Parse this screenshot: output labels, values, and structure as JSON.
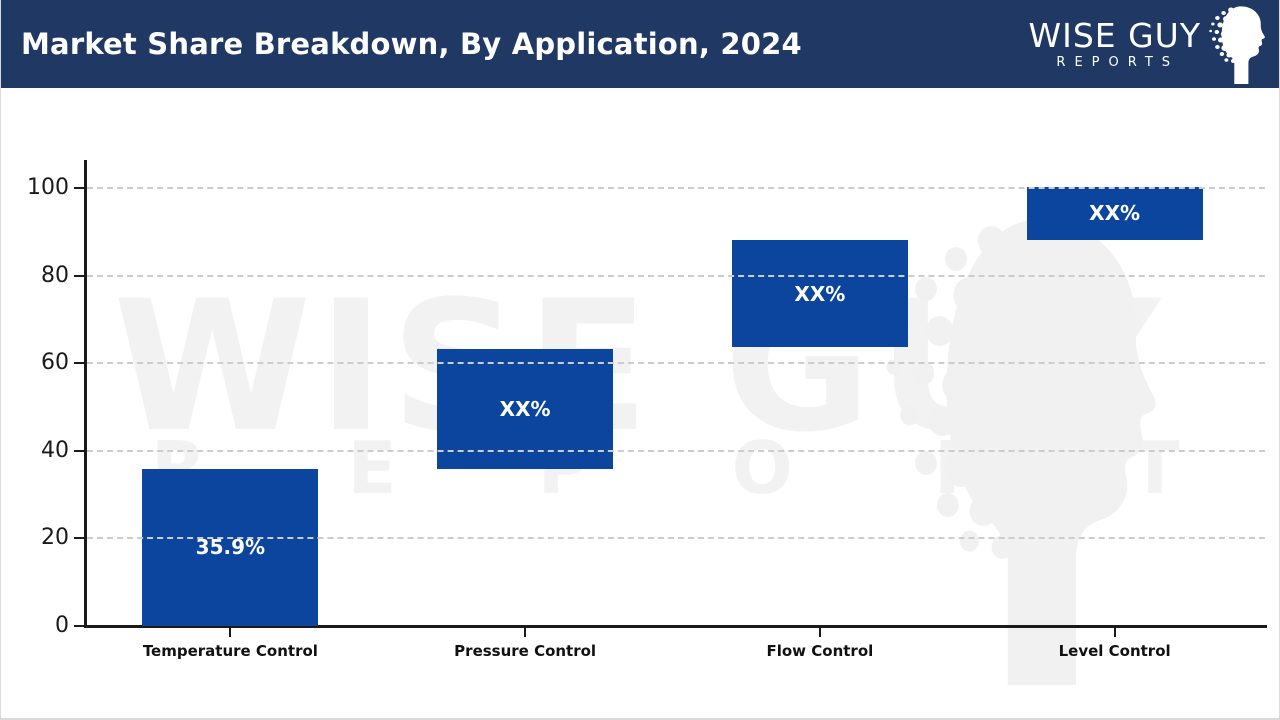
{
  "header": {
    "title": "Market Share Breakdown, By Application, 2024",
    "brand": {
      "line1": "WISE GUY",
      "line2": "REPORTS"
    }
  },
  "watermark": {
    "line1": "WISE GUY",
    "line2": "R E P O R T S"
  },
  "chart_data": {
    "type": "bar",
    "subtype": "waterfall-floating-bars",
    "title": "Market Share Breakdown, By Application, 2024",
    "categories": [
      "Temperature Control",
      "Pressure Control",
      "Flow Control",
      "Level Control"
    ],
    "segments": [
      {
        "start": 0,
        "end": 35.9,
        "label": "35.9%"
      },
      {
        "start": 35.9,
        "end": 63.2,
        "label": "XX%"
      },
      {
        "start": 63.6,
        "end": 88.2,
        "label": "XX%"
      },
      {
        "start": 88.2,
        "end": 100.3,
        "label": "XX%"
      }
    ],
    "yticks": [
      0,
      20,
      40,
      60,
      80,
      100
    ],
    "ylim": [
      0,
      106
    ],
    "xlabel": "",
    "ylabel": "",
    "grid": "horizontal-dashed-above-bars",
    "bar_color": "#0c459e",
    "label_color": "#ffffff",
    "axis_color": "#1a1a1a",
    "header_color": "#1f3864"
  }
}
